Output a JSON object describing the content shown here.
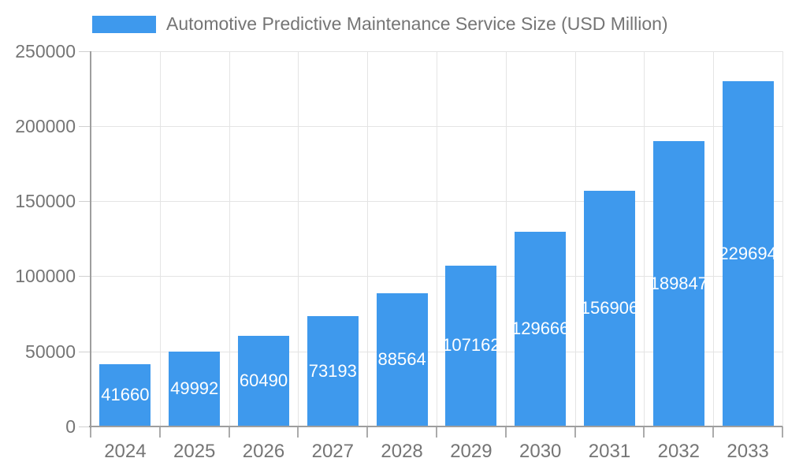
{
  "chart_data": {
    "type": "bar",
    "title": "Automotive Predictive Maintenance Service Size (USD Million)",
    "legend": [
      "Automotive Predictive Maintenance Service Size (USD Million)"
    ],
    "legend_position": "top-left",
    "categories": [
      "2024",
      "2025",
      "2026",
      "2027",
      "2028",
      "2029",
      "2030",
      "2031",
      "2032",
      "2033"
    ],
    "series": [
      {
        "name": "Automotive Predictive Maintenance Service Size (USD Million)",
        "values": [
          41660,
          49992,
          60490,
          73193,
          88564,
          107162,
          129666,
          156906,
          189847,
          229694
        ]
      }
    ],
    "xlabel": "",
    "ylabel": "",
    "ylim": [
      0,
      250000
    ],
    "y_ticks": [
      0,
      50000,
      100000,
      150000,
      200000,
      250000
    ],
    "grid": true,
    "bar_value_labels_visible": true
  },
  "colors": {
    "bar": "#3e99ed",
    "bar_value_label": "#ffffff",
    "axis_text": "#757575",
    "legend_text": "#757575",
    "gridline": "#e4e4e4",
    "axis_line": "#9e9e9e",
    "background": "#ffffff"
  }
}
